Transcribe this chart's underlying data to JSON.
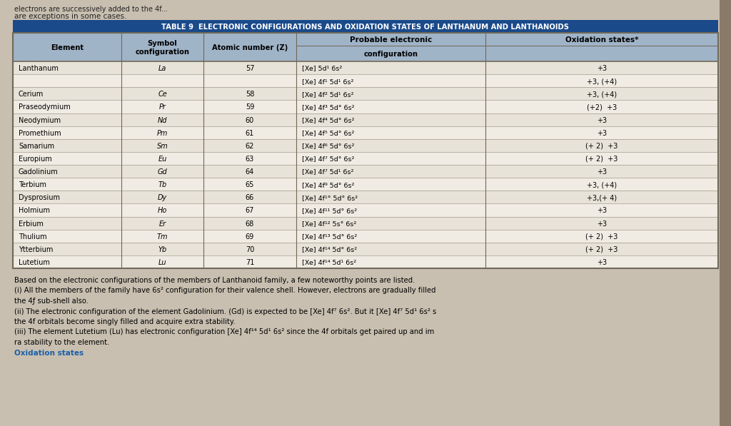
{
  "top_text": "are exceptions in some cases.",
  "title_bar": "TABLE 9  ELECTRONIC CONFIGURATIONS AND OXIDATION STATES OF LANTHANUM AND LANTHANOIDS",
  "bg_color": "#c8bfb0",
  "table_bg_light": "#e8e0d0",
  "table_bg_dark": "#dbd3c3",
  "header_bg": "#a0b4c8",
  "header_bg2": "#b0c4d8",
  "title_bg": "#1a4a8a",
  "title_fg": "#ffffff",
  "border_color": "#706858",
  "row_data": [
    [
      "Lanthanum",
      "La",
      "57",
      "[Xe] 5d¹ 6s²",
      "+3"
    ],
    [
      "",
      "",
      "",
      "[Xe] 4f¹ 5d¹ 6s²",
      "+3, (+4)"
    ],
    [
      "Cerium",
      "Ce",
      "58",
      "[Xe] 4f² 5d¹ 6s²",
      "+3, (+4)"
    ],
    [
      "Praseodymium",
      "Pr",
      "59",
      "[Xe] 4f³ 5d° 6s²",
      "(+2)  +3"
    ],
    [
      "Neodymium",
      "Nd",
      "60",
      "[Xe] 4f⁴ 5d° 6s²",
      "+3"
    ],
    [
      "Promethium",
      "Pm",
      "61",
      "[Xe] 4f⁵ 5d° 6s²",
      "+3"
    ],
    [
      "Samarium",
      "Sm",
      "62",
      "[Xe] 4f⁶ 5d° 6s²",
      "(+ 2)  +3"
    ],
    [
      "Europium",
      "Eu",
      "63",
      "[Xe] 4f⁷ 5d° 6s²",
      "(+ 2)  +3"
    ],
    [
      "Gadolinium",
      "Gd",
      "64",
      "[Xe] 4f⁷ 5d¹ 6s²",
      "+3"
    ],
    [
      "Terbium",
      "Tb",
      "65",
      "[Xe] 4f⁹ 5d° 6s²",
      "+3, (+4)"
    ],
    [
      "Dysprosium",
      "Dy",
      "66",
      "[Xe] 4f¹° 5d° 6s²",
      "+3,(+ 4)"
    ],
    [
      "Holmium",
      "Ho",
      "67",
      "[Xe] 4f¹¹ 5d° 6s²",
      "+3"
    ],
    [
      "Erbium",
      "Er",
      "68",
      "[Xe] 4f¹² 5s° 6s²",
      "+3"
    ],
    [
      "Thulium",
      "Tm",
      "69",
      "[Xe] 4f¹³ 5d° 6s²",
      "(+ 2)  +3"
    ],
    [
      "Ytterbium",
      "Yb",
      "70",
      "[Xe] 4f¹⁴ 5d° 6s²",
      "(+ 2)  +3"
    ],
    [
      "Lutetium",
      "Lu",
      "71",
      "[Xe] 4f¹⁴ 5d¹ 6s²",
      "+3"
    ]
  ],
  "footer_lines": [
    [
      "Based on the electronic configurations of the members of Lanthanoid family, a few noteworthy points are listed.",
      "normal",
      "black"
    ],
    [
      "(i) All the members of the family have 6s² configuration for their valence shell. However, electrons are gradually filled",
      "normal",
      "black"
    ],
    [
      "the 4ƒ sub-shell also.",
      "normal",
      "black"
    ],
    [
      "(ii) The electronic configuration of the element Gadolinium. (Gd) is expected to be [Xe] 4f⁷ 6s². But it [Xe] 4f⁷ 5d¹ 6s² s",
      "normal",
      "black"
    ],
    [
      "the 4f orbitals become singly filled and acquire extra stability.",
      "normal",
      "black"
    ],
    [
      "(iii) The element Lutetium (Lu) has electronic configuration [Xe] 4f¹⁴ 5d¹ 6s² since the 4f orbitals get paired up and im",
      "normal",
      "black"
    ],
    [
      "ra stability to the element.",
      "normal",
      "black"
    ],
    [
      "Oxidation states",
      "bold",
      "#1a5fa8"
    ]
  ]
}
